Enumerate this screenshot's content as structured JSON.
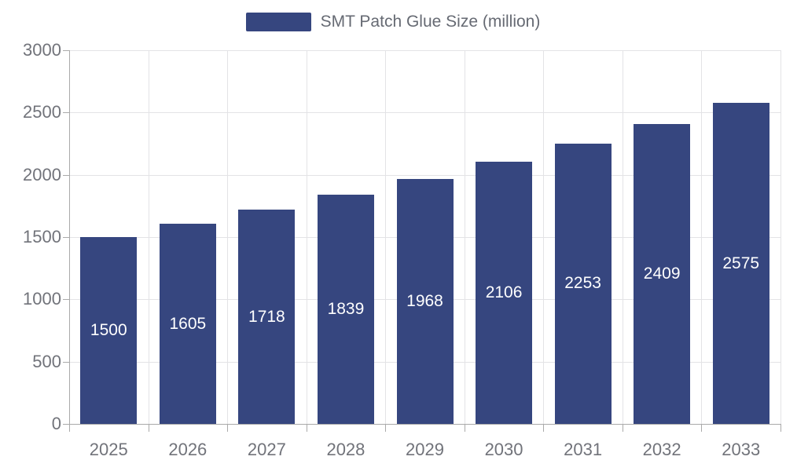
{
  "chart_data": {
    "type": "bar",
    "title": "",
    "legend": {
      "position": "top",
      "label": "SMT Patch Glue Size (million)"
    },
    "categories": [
      "2025",
      "2026",
      "2027",
      "2028",
      "2029",
      "2030",
      "2031",
      "2032",
      "2033"
    ],
    "series": [
      {
        "name": "SMT Patch Glue Size (million)",
        "values": [
          1500,
          1605,
          1718,
          1839,
          1968,
          2106,
          2253,
          2409,
          2575
        ]
      }
    ],
    "xlabel": "",
    "ylabel": "",
    "ylim": [
      0,
      3000
    ],
    "yticks": [
      0,
      500,
      1000,
      1500,
      2000,
      2500,
      3000
    ],
    "grid": true,
    "bar_labels_shown": true,
    "colors": {
      "bar": "#36467f",
      "bar_label_text": "#ffffff",
      "axis_text": "#71737a",
      "legend_text": "#666a73",
      "axis_line": "#aaaaaa",
      "gridline": "#e3e3e6"
    }
  }
}
